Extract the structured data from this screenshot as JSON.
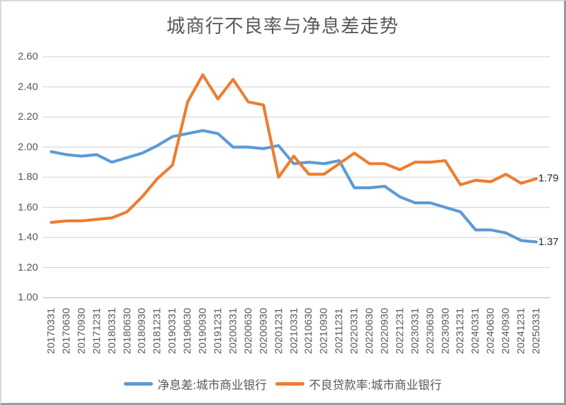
{
  "title": "城商行不良率与净息差走势",
  "chart_data": {
    "type": "line",
    "x_labels": [
      "20170331",
      "20170630",
      "20170930",
      "20171231",
      "20180331",
      "20180630",
      "20180930",
      "20181231",
      "20190331",
      "20190630",
      "20190930",
      "20191231",
      "20200331",
      "20200630",
      "20200930",
      "20201231",
      "20210331",
      "20210630",
      "20210930",
      "20211231",
      "20220331",
      "20220630",
      "20220930",
      "20221231",
      "20230331",
      "20230630",
      "20230930",
      "20231231",
      "20240331",
      "20240630",
      "20240930",
      "20241231",
      "20250331"
    ],
    "series": [
      {
        "name": "净息差:城市商业银行",
        "color": "#5B9BD5",
        "end_label": "1.37",
        "values": [
          1.97,
          1.95,
          1.94,
          1.95,
          1.9,
          1.93,
          1.96,
          2.01,
          2.07,
          2.09,
          2.11,
          2.09,
          2.0,
          2.0,
          1.99,
          2.01,
          1.89,
          1.9,
          1.89,
          1.91,
          1.73,
          1.73,
          1.74,
          1.67,
          1.63,
          1.63,
          1.6,
          1.57,
          1.45,
          1.45,
          1.43,
          1.38,
          1.37
        ]
      },
      {
        "name": "不良贷款率:城市商业银行",
        "color": "#ED7D31",
        "end_label": "1.79",
        "values": [
          1.5,
          1.51,
          1.51,
          1.52,
          1.53,
          1.57,
          1.67,
          1.79,
          1.88,
          2.3,
          2.48,
          2.32,
          2.45,
          2.3,
          2.28,
          1.8,
          1.94,
          1.82,
          1.82,
          1.89,
          1.96,
          1.89,
          1.89,
          1.85,
          1.9,
          1.9,
          1.91,
          1.75,
          1.78,
          1.77,
          1.82,
          1.76,
          1.79
        ]
      }
    ],
    "ylim": [
      1.0,
      2.6
    ],
    "y_ticks": [
      "2.60",
      "2.40",
      "2.20",
      "2.00",
      "1.80",
      "1.60",
      "1.40",
      "1.20",
      "1.00"
    ],
    "y_tick_step": 0.2,
    "xlabel": "",
    "ylabel": "",
    "grid": true,
    "legend_position": "bottom"
  },
  "colors": {
    "gridline": "#d9d9d9",
    "baseline": "#bfbfbf",
    "axis_text": "#595959",
    "title_text": "#595959",
    "data_label_text": "#262626",
    "background": "#ffffff"
  }
}
